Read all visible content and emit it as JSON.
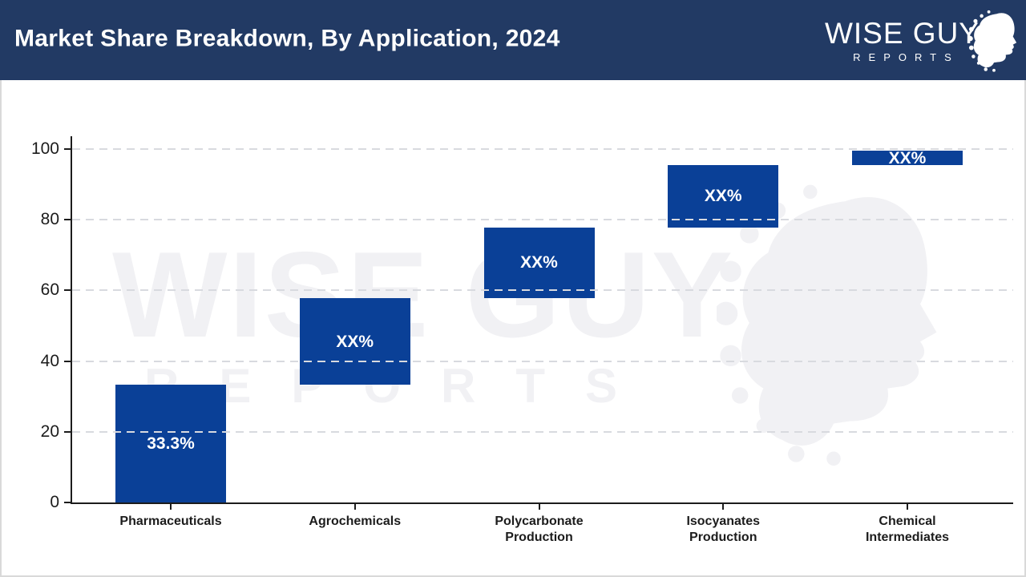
{
  "header": {
    "title": "Market Share Breakdown, By Application, 2024",
    "logo": {
      "brand": "WISE GUY",
      "sub": "REPORTS"
    }
  },
  "watermark": {
    "line1": "WISE GUY",
    "line2": "REPORTS"
  },
  "colors": {
    "header_bg": "#223a64",
    "bar": "#0a4097",
    "bar_label": "#ffffff",
    "axis": "#1c1c1c",
    "tick_label": "#1c1c1c",
    "grid": "#d8dadf",
    "watermark": "#f1f1f4",
    "border": "#d9d9d9"
  },
  "chart_data": {
    "type": "bar",
    "subtype": "waterfall",
    "title": "Market Share Breakdown, By Application, 2024",
    "xlabel": "",
    "ylabel": "",
    "categories": [
      "Pharmaceuticals",
      "Agrochemicals",
      "Polycarbonate Production",
      "Isocyanates Production",
      "Chemical Intermediates"
    ],
    "segments": [
      {
        "category": "Pharmaceuticals",
        "label": "33.3%",
        "start": 0,
        "end": 33.3
      },
      {
        "category": "Agrochemicals",
        "label": "XX%",
        "start": 33.3,
        "end": 57.8
      },
      {
        "category": "Polycarbonate Production",
        "label": "XX%",
        "start": 57.8,
        "end": 77.8
      },
      {
        "category": "Isocyanates Production",
        "label": "XX%",
        "start": 77.8,
        "end": 95.5
      },
      {
        "category": "Chemical Intermediates",
        "label": "XX%",
        "start": 95.5,
        "end": 99.5
      }
    ],
    "ylim": [
      0,
      100
    ],
    "yticks": [
      0,
      20,
      40,
      60,
      80,
      100
    ],
    "grid": "dashed-horizontal",
    "legend": "none"
  },
  "category_label_lines": [
    [
      "Pharmaceuticals"
    ],
    [
      "Agrochemicals"
    ],
    [
      "Polycarbonate",
      "Production"
    ],
    [
      "Isocyanates",
      "Production"
    ],
    [
      "Chemical",
      "Intermediates"
    ]
  ]
}
